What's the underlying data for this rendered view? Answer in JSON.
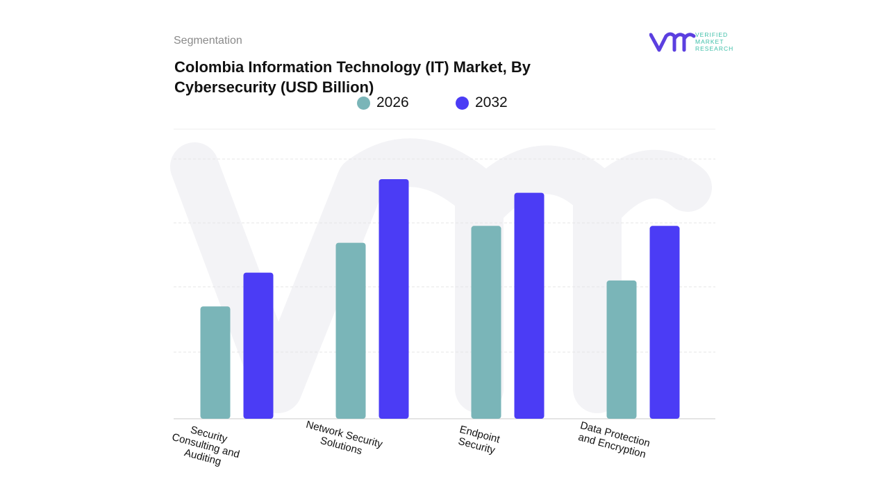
{
  "header": {
    "section": "Segmentation",
    "title": "Colombia Information Technology (IT) Market, By Cybersecurity (USD Billion)"
  },
  "logo": {
    "text_lines": [
      "VERIFIED",
      "MARKET",
      "RESEARCH"
    ],
    "mark": "vmr"
  },
  "colors": {
    "s2026": "#7ab5b8",
    "s2032": "#4b3cf5",
    "brand_purple": "#5b3fe0",
    "brand_teal": "#3dbfa8"
  },
  "chart_data": {
    "type": "bar",
    "title": "Colombia Information Technology (IT) Market, By Cybersecurity (USD Billion)",
    "xlabel": "",
    "ylabel": "",
    "categories": [
      "Security\nConsulting and\nAuditing",
      "Network Security\nSolutions",
      "Endpoint\nSecurity",
      "Data Protection\nand Encryption"
    ],
    "series": [
      {
        "name": "2026",
        "values": [
          1.73,
          2.71,
          2.97,
          2.13
        ]
      },
      {
        "name": "2032",
        "values": [
          2.25,
          3.69,
          3.48,
          2.97
        ]
      }
    ],
    "ylim": [
      0,
      4.46
    ],
    "grid": true,
    "legend": "top-center",
    "y_ticks_shown": false
  }
}
